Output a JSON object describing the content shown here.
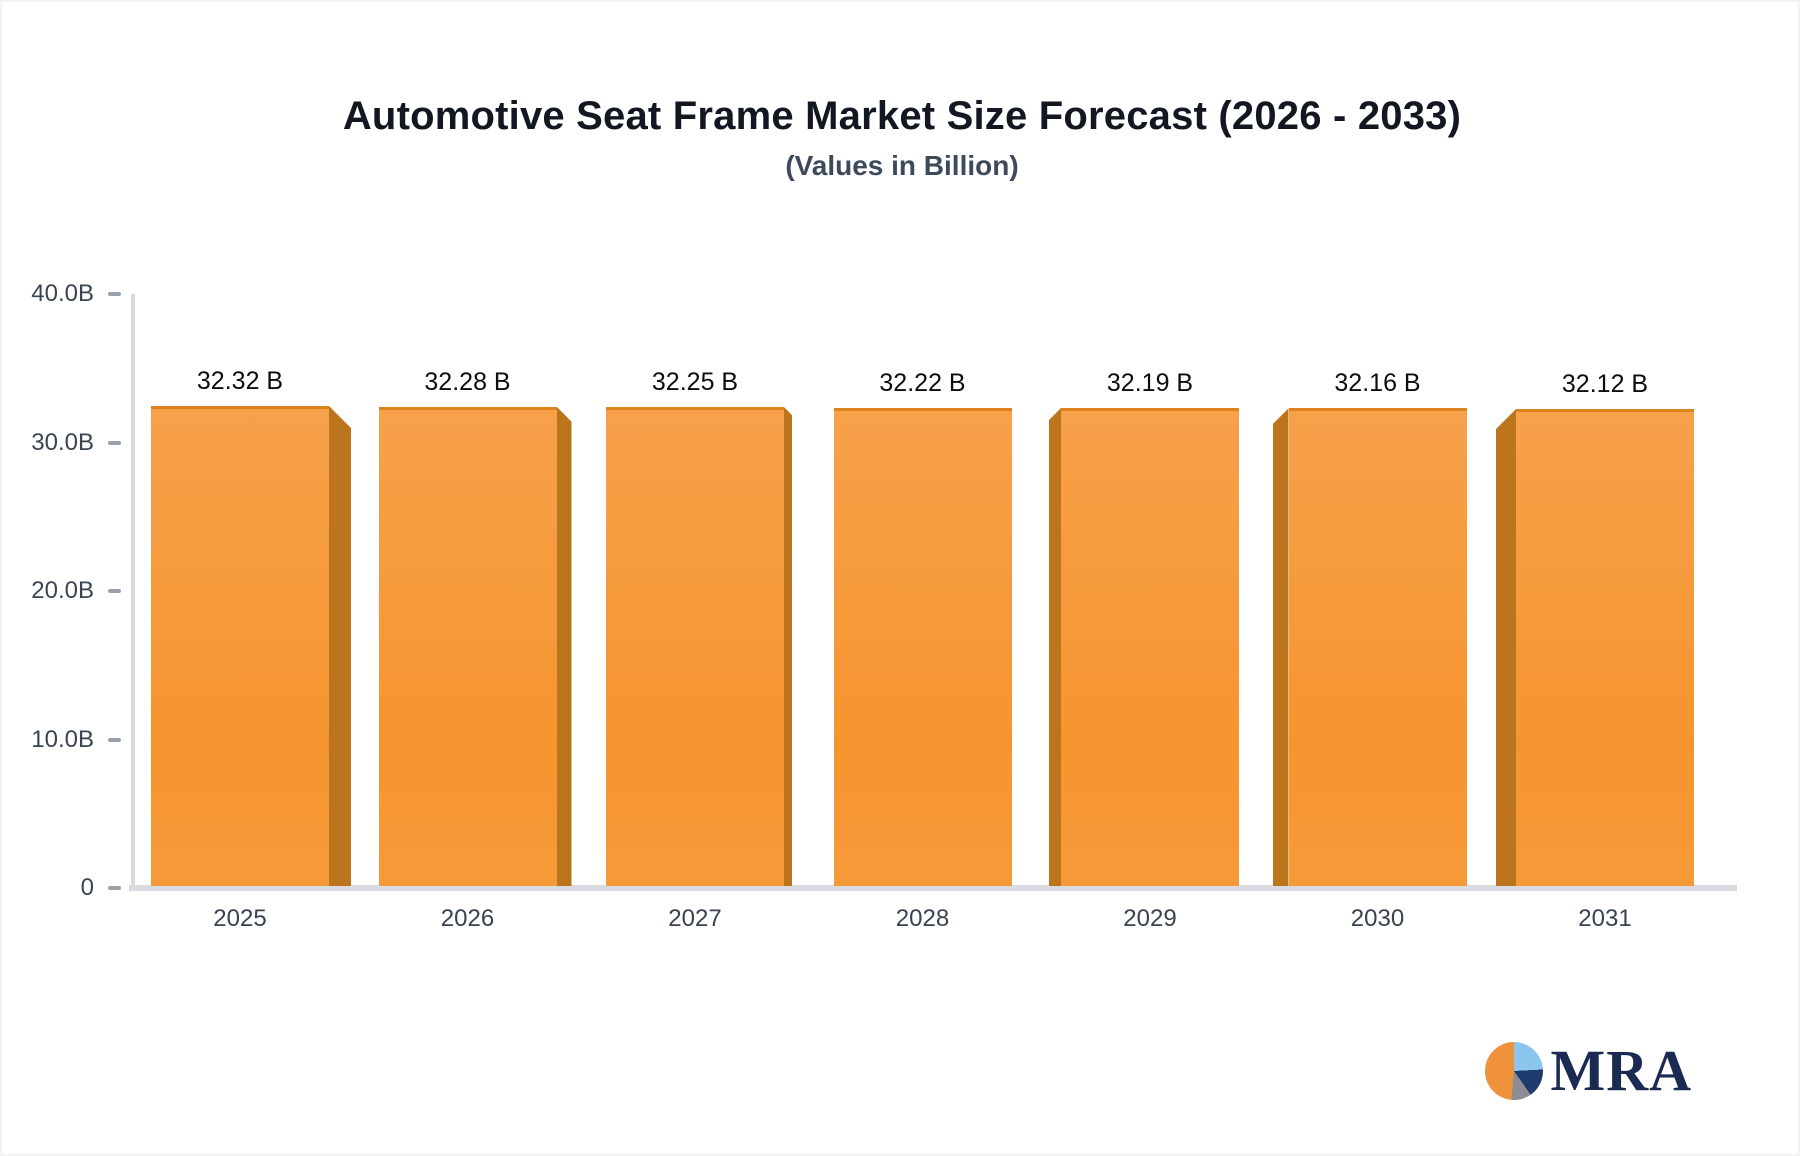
{
  "chart_data": {
    "type": "bar",
    "title": "Automotive Seat Frame Market Size Forecast (2026 - 2033)",
    "subtitle": "(Values in Billion)",
    "categories": [
      "2025",
      "2026",
      "2027",
      "2028",
      "2029",
      "2030",
      "2031"
    ],
    "values": [
      32.32,
      32.28,
      32.25,
      32.22,
      32.19,
      32.16,
      32.12
    ],
    "bar_value_labels": [
      "32.32 B",
      "32.28 B",
      "32.25 B",
      "32.22 B",
      "32.19 B",
      "32.16 B",
      "32.12 B"
    ],
    "ytick_labels": [
      "40.0B",
      "30.0B",
      "20.0B",
      "10.0B",
      "0"
    ],
    "ylim": [
      0,
      40
    ],
    "xlabel": "",
    "ylabel": "",
    "grid": false,
    "legend": false,
    "bar_color": "#F6953A",
    "bar_side_color": "#BC741D",
    "bar_style": "3d-extruded, perspective toward center"
  },
  "logo": {
    "text": "MRA",
    "pie_icon_colors": {
      "orange": "#F0923B",
      "light_blue": "#8CC6EC",
      "navy": "#1F3B6E",
      "gray": "#8D8D95"
    }
  }
}
